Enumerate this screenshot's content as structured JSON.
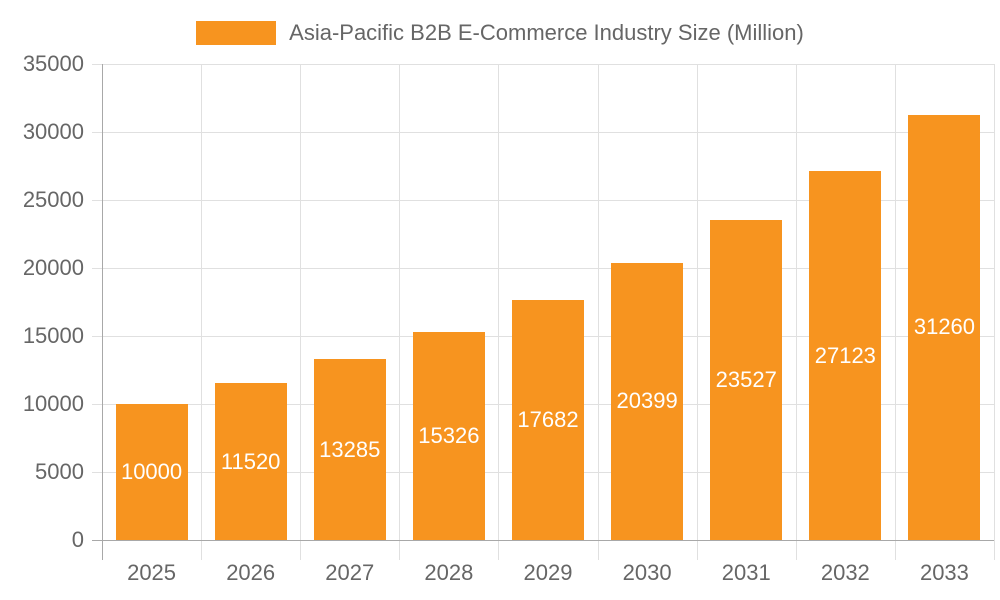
{
  "legend": {
    "label": "Asia-Pacific B2B E-Commerce Industry Size (Million)",
    "color": "#f7941f"
  },
  "y_ticks": [
    "0",
    "5000",
    "10000",
    "15000",
    "20000",
    "25000",
    "30000",
    "35000"
  ],
  "chart_data": {
    "type": "bar",
    "title": "",
    "categories": [
      "2025",
      "2026",
      "2027",
      "2028",
      "2029",
      "2030",
      "2031",
      "2032",
      "2033"
    ],
    "series": [
      {
        "name": "Asia-Pacific B2B E-Commerce Industry Size (Million)",
        "color": "#f7941f",
        "values": [
          10000,
          11520,
          13285,
          15326,
          17682,
          20399,
          23527,
          27123,
          31260
        ]
      }
    ],
    "values": [
      10000,
      11520,
      13285,
      15326,
      17682,
      20399,
      23527,
      27123,
      31260
    ],
    "data_labels": [
      "10000",
      "11520",
      "13285",
      "15326",
      "17682",
      "20399",
      "23527",
      "27123",
      "31260"
    ],
    "xlabel": "",
    "ylabel": "",
    "ylim": [
      0,
      35000
    ],
    "y_tick_step": 5000,
    "grid": true,
    "legend_position": "top"
  }
}
